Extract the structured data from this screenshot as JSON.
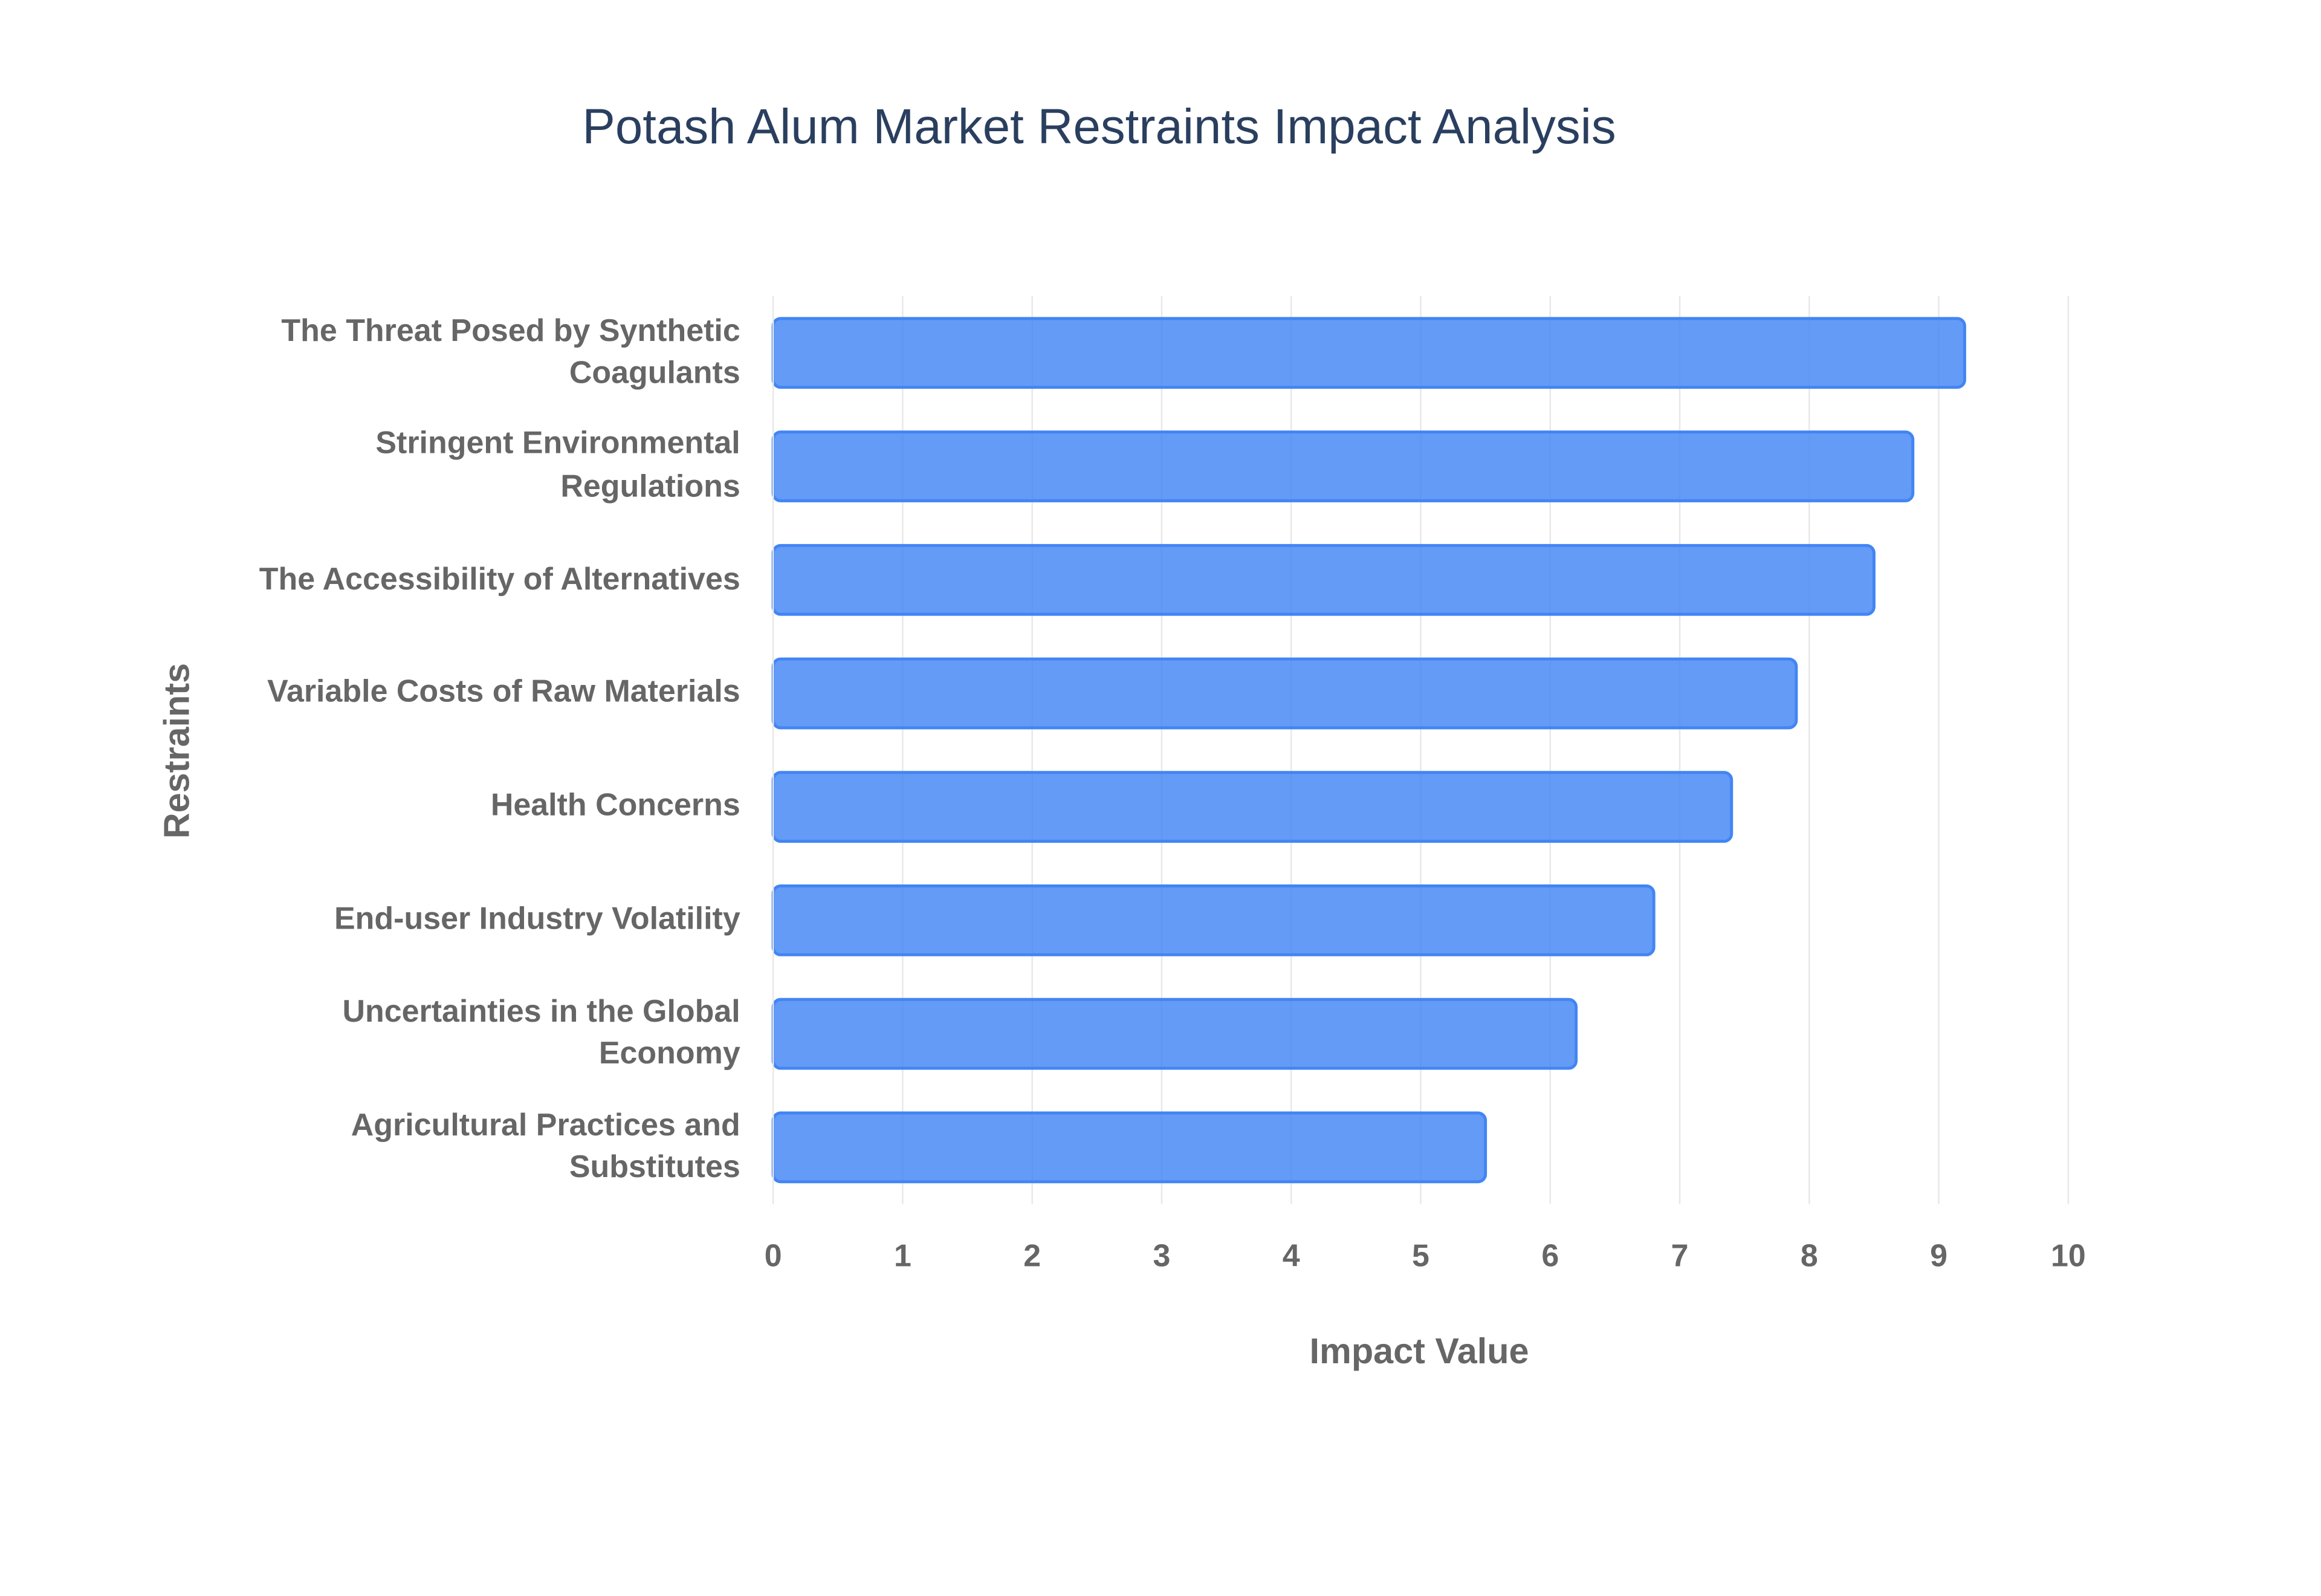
{
  "chart_data": {
    "type": "bar",
    "orientation": "horizontal",
    "title": "Potash Alum Market Restraints Impact Analysis",
    "x_label": "Impact Value",
    "y_label": "Restraints",
    "categories": [
      "The Threat Posed by Synthetic Coagulants",
      "Stringent Environmental Regulations",
      "The Accessibility of Alternatives",
      "Variable Costs of Raw Materials",
      "Health Concerns",
      "End-user Industry Volatility",
      "Uncertainties in the Global Economy",
      "Agricultural Practices and Substitutes"
    ],
    "values": [
      9.2,
      8.8,
      8.5,
      7.9,
      7.4,
      6.8,
      6.2,
      5.5
    ],
    "color": "#4285f4",
    "xlim": [
      0,
      10
    ],
    "xticks": [
      0,
      1,
      2,
      3,
      4,
      5,
      6,
      7,
      8,
      9,
      10
    ],
    "grid": true
  }
}
